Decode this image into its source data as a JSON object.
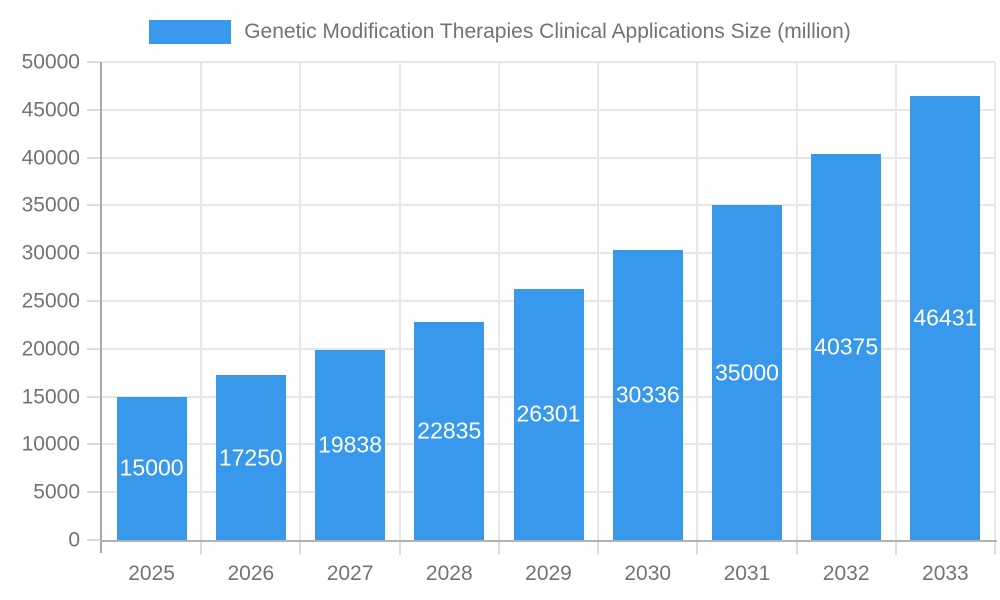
{
  "legend": {
    "label": "Genetic Modification Therapies Clinical Applications Size (million)"
  },
  "chart_data": {
    "type": "bar",
    "title": "Genetic Modification Therapies Clinical Applications Size (million)",
    "series_name": "Genetic Modification Therapies Clinical Applications Size (million)",
    "categories": [
      "2025",
      "2026",
      "2027",
      "2028",
      "2029",
      "2030",
      "2031",
      "2032",
      "2033"
    ],
    "values": [
      15000,
      17250,
      19838,
      22835,
      26301,
      30336,
      35000,
      40375,
      46431
    ],
    "xlabel": "",
    "ylabel": "",
    "ylim": [
      0,
      50000
    ],
    "yticks": [
      0,
      5000,
      10000,
      15000,
      20000,
      25000,
      30000,
      35000,
      40000,
      45000,
      50000
    ],
    "grid": true,
    "legend_position": "top",
    "bar_labels_inside": true,
    "colors": {
      "bar": "#3898EC",
      "bar_label_text": "#FFFFFF",
      "axis_text": "#737373",
      "gridline": "#E7E7E7",
      "axis_line": "#ABABAB",
      "tick": "#DCDCDC",
      "background": "#FFFFFF"
    }
  }
}
